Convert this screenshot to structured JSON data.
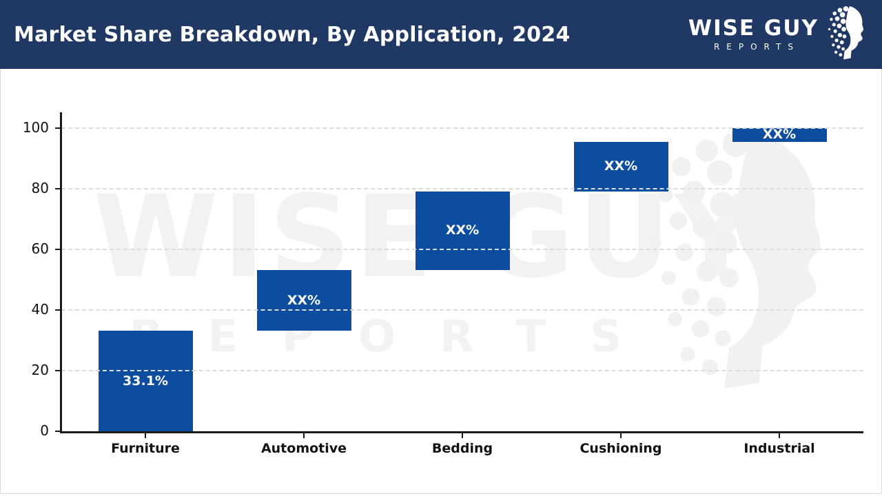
{
  "header": {
    "title": "Market Share Breakdown, By Application, 2024",
    "bg_color": "#1f3864",
    "logo": {
      "line1": "WISE GUY",
      "line2": "REPORTS"
    }
  },
  "watermark": {
    "line1": "WISE GUY",
    "line2": "REPORTS"
  },
  "chart_data": {
    "type": "bar",
    "subtype": "waterfall",
    "title": "",
    "xlabel": "",
    "ylabel": "",
    "categories": [
      "Furniture",
      "Automotive",
      "Bedding",
      "Cushioning",
      "Industrial"
    ],
    "segments": [
      {
        "category": "Furniture",
        "start": 0,
        "end": 33.1,
        "label": "33.1%"
      },
      {
        "category": "Automotive",
        "start": 33.1,
        "end": 53.2,
        "label": "XX%"
      },
      {
        "category": "Bedding",
        "start": 53.2,
        "end": 79.1,
        "label": "XX%"
      },
      {
        "category": "Cushioning",
        "start": 79.1,
        "end": 95.5,
        "label": "XX%"
      },
      {
        "category": "Industrial",
        "start": 95.5,
        "end": 100,
        "label": "XX%"
      }
    ],
    "yticks": [
      0,
      20,
      40,
      60,
      80,
      100
    ],
    "ylim": [
      0,
      105
    ],
    "grid": "dashed-horizontal",
    "legend": "none",
    "bar_color": "#0d4da0",
    "label_color": "#ffffff",
    "axis_color": "#1a1a1a",
    "gridline_color": "#dcdcdc"
  }
}
